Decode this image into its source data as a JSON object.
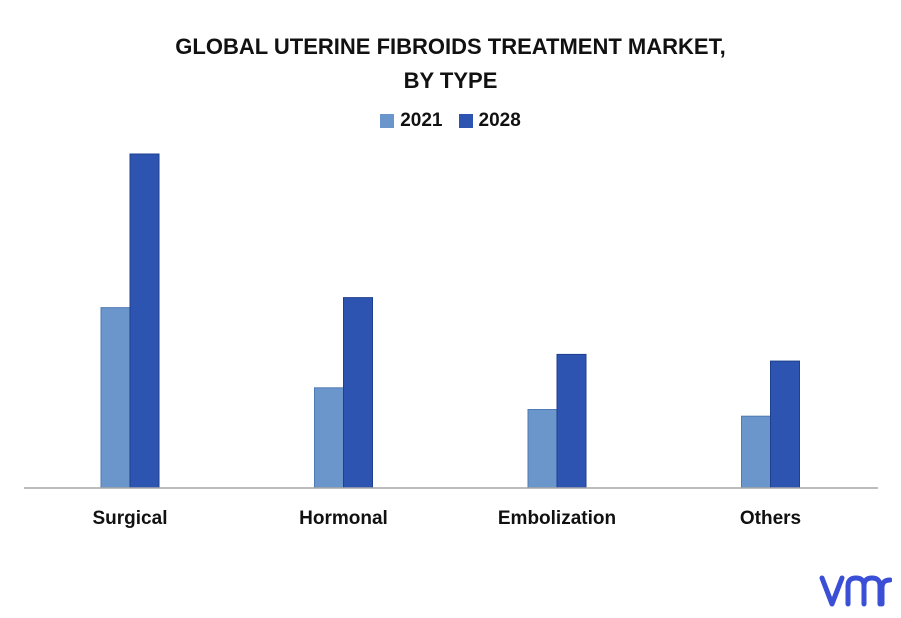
{
  "chart_data": {
    "type": "bar",
    "title_lines": [
      "GLOBAL UTERINE FIBROIDS TREATMENT MARKET,",
      "BY TYPE"
    ],
    "categories": [
      "Surgical",
      "Hormonal",
      "Embolization",
      "Others"
    ],
    "series": [
      {
        "name": "2021",
        "color": "#6a96cb",
        "values": [
          5.4,
          3.0,
          2.35,
          2.15
        ]
      },
      {
        "name": "2028",
        "color": "#2d54b0",
        "values": [
          10.0,
          5.7,
          4.0,
          3.8
        ]
      }
    ],
    "ylim": [
      0,
      10
    ],
    "legend_position": "top-center",
    "grid": false
  },
  "logo": {
    "text": "vmr",
    "color": "#3a4fd6"
  }
}
